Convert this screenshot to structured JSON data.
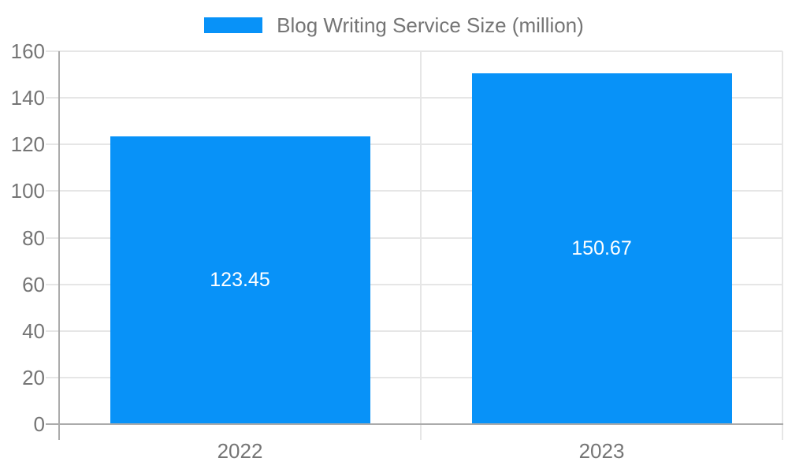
{
  "chart_data": {
    "type": "bar",
    "title": "",
    "legend": {
      "label": "Blog Writing Service Size (million)",
      "position": "top"
    },
    "categories": [
      "2022",
      "2023"
    ],
    "series": [
      {
        "name": "Blog Writing Service Size (million)",
        "values": [
          123.45,
          150.67
        ]
      }
    ],
    "value_labels": [
      "123.45",
      "150.67"
    ],
    "xlabel": "",
    "ylabel": "",
    "ylim": [
      0,
      160
    ],
    "yticks": [
      0,
      20,
      40,
      60,
      80,
      100,
      120,
      140,
      160
    ],
    "grid": true,
    "legend_position": "top-center",
    "colors": {
      "bar": "#0892F8",
      "grid": "#E6E6E6",
      "axis": "#ABABAB",
      "tick_text": "#757575",
      "value_label": "#FFFFFF"
    }
  }
}
